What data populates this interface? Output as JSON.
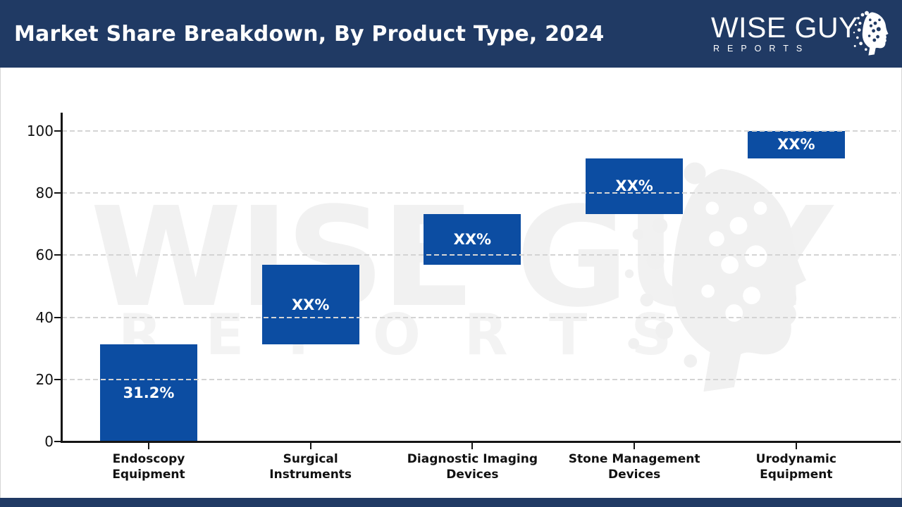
{
  "header": {
    "title": "Market Share Breakdown, By Product Type, 2024",
    "logo": {
      "line1": "WISE GUY",
      "line2": "REPORTS"
    }
  },
  "watermark": {
    "line1": "WISE GUY",
    "line2": "REPORTS"
  },
  "colors": {
    "header_bg": "#203A64",
    "bar_blue": "#0C4DA2",
    "gridline": "#d4d4d4",
    "axis": "#151515",
    "watermark_gray": "#f1f1f1"
  },
  "chart_data": {
    "type": "bar",
    "subtype": "waterfall",
    "title": "Market Share Breakdown, By Product Type, 2024",
    "xlabel": "",
    "ylabel": "",
    "ylim": [
      0,
      105
    ],
    "yticks": [
      0,
      20,
      40,
      60,
      80,
      100
    ],
    "grid": "horizontal dashed, drawn above bars",
    "legend": "none",
    "categories": [
      "Endoscopy\nEquipment",
      "Surgical\nInstruments",
      "Diagnostic Imaging\nDevices",
      "Stone Management\nDevices",
      "Urodynamic\nEquipment"
    ],
    "segments": [
      {
        "category": "Endoscopy Equipment",
        "start": 0,
        "end": 31.2,
        "label": "31.2%"
      },
      {
        "category": "Surgical Instruments",
        "start": 31.2,
        "end": 56.9,
        "label": "XX%"
      },
      {
        "category": "Diagnostic Imaging Devices",
        "start": 56.9,
        "end": 73.3,
        "label": "XX%"
      },
      {
        "category": "Stone Management Devices",
        "start": 73.3,
        "end": 91.2,
        "label": "XX%"
      },
      {
        "category": "Urodynamic Equipment",
        "start": 91.2,
        "end": 100,
        "label": "XX%"
      }
    ]
  }
}
